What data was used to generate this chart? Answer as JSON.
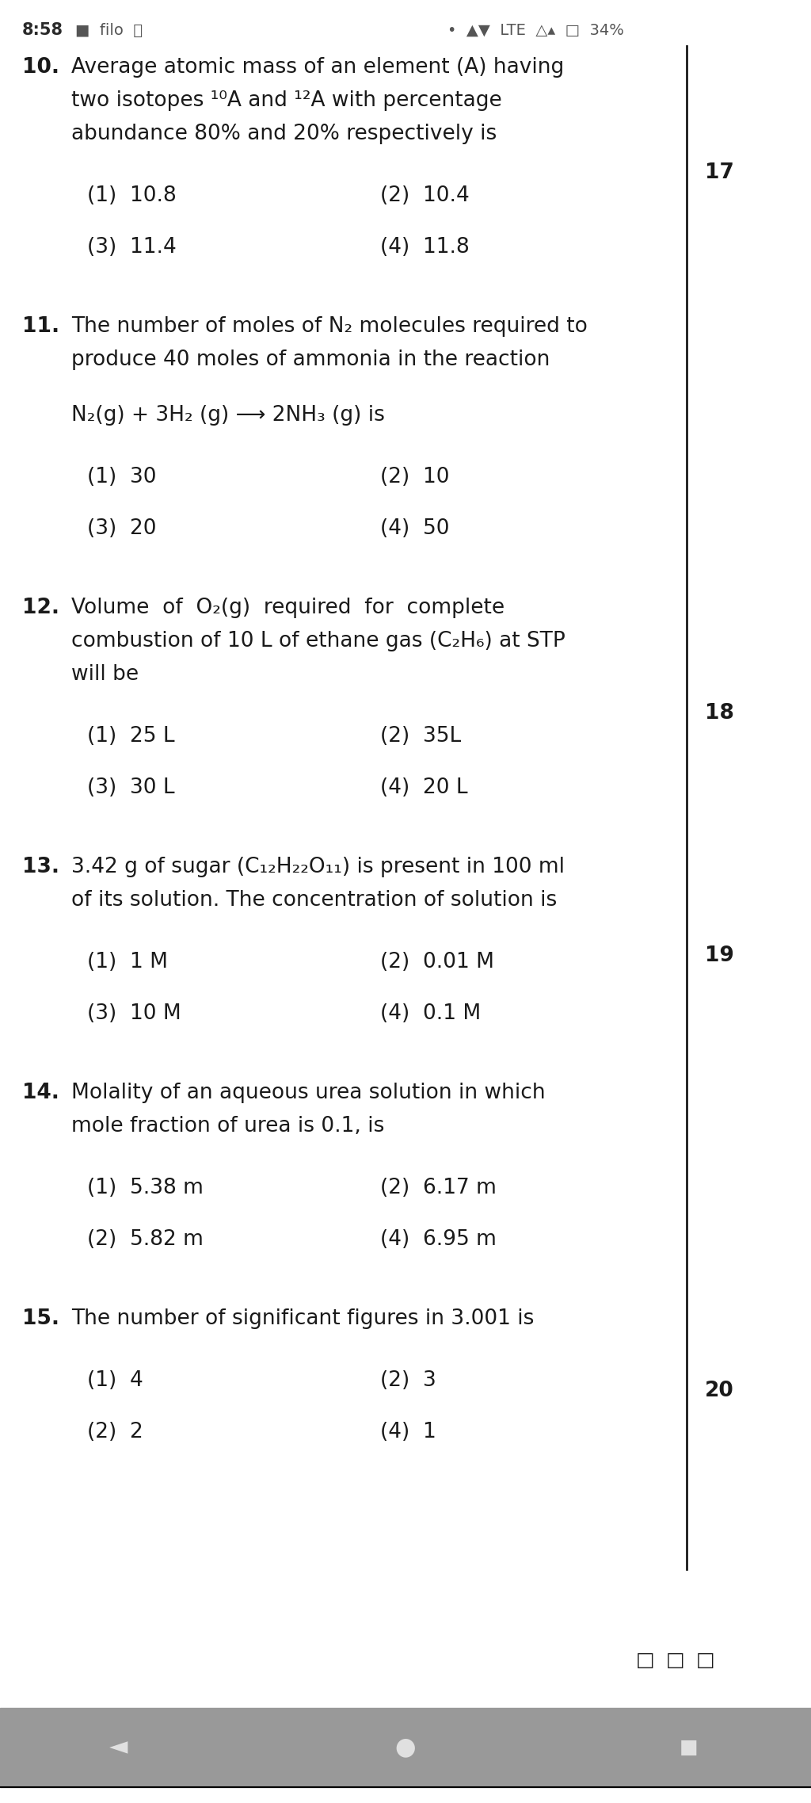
{
  "bg_color": "#ffffff",
  "nav_bar_color": "#999999",
  "text_color": "#1a1a1a",
  "line_color": "#1a1a1a",
  "questions": [
    {
      "number": "10.",
      "text_lines": [
        "Average atomic mass of an element (A) having",
        "two isotopes ¹⁰A and ¹²A with percentage",
        "abundance 80% and 20% respectively is"
      ],
      "equation": null,
      "options": [
        [
          "(1)  10.8",
          "(2)  10.4"
        ],
        [
          "(3)  11.4",
          "(4)  11.8"
        ]
      ]
    },
    {
      "number": "11.",
      "text_lines": [
        "The number of moles of N₂ molecules required to",
        "produce 40 moles of ammonia in the reaction"
      ],
      "equation": "N₂(g) + 3H₂ (g) ⟶ 2NH₃ (g) is",
      "options": [
        [
          "(1)  30",
          "(2)  10"
        ],
        [
          "(3)  20",
          "(4)  50"
        ]
      ]
    },
    {
      "number": "12.",
      "text_lines": [
        "Volume  of  O₂(g)  required  for  complete",
        "combustion of 10 L of ethane gas (C₂H₆) at STP",
        "will be"
      ],
      "equation": null,
      "options": [
        [
          "(1)  25 L",
          "(2)  35L"
        ],
        [
          "(3)  30 L",
          "(4)  20 L"
        ]
      ]
    },
    {
      "number": "13.",
      "text_lines": [
        "3.42 g of sugar (C₁₂H₂₂O₁₁) is present in 100 ml",
        "of its solution. The concentration of solution is"
      ],
      "equation": null,
      "options": [
        [
          "(1)  1 M",
          "(2)  0.01 M"
        ],
        [
          "(3)  10 M",
          "(4)  0.1 M"
        ]
      ]
    },
    {
      "number": "14.",
      "text_lines": [
        "Molality of an aqueous urea solution in which",
        "mole fraction of urea is 0.1, is"
      ],
      "equation": null,
      "options": [
        [
          "(1)  5.38 m",
          "(2)  6.17 m"
        ],
        [
          "(2)  5.82 m",
          "(4)  6.95 m"
        ]
      ]
    },
    {
      "number": "15.",
      "text_lines": [
        "The number of significant figures in 3.001 is"
      ],
      "equation": null,
      "options": [
        [
          "(1)  4",
          "(2)  3"
        ],
        [
          "(2)  2",
          "(4)  1"
        ]
      ]
    }
  ],
  "right_labels": {
    "0": "17",
    "2": "18",
    "3": "19",
    "5": "20"
  },
  "status_time": "8:58",
  "status_right": "•  ▲▼  LTE  △▴  □  34%",
  "font_size_main": 19,
  "font_size_status": 14,
  "font_size_right": 19
}
